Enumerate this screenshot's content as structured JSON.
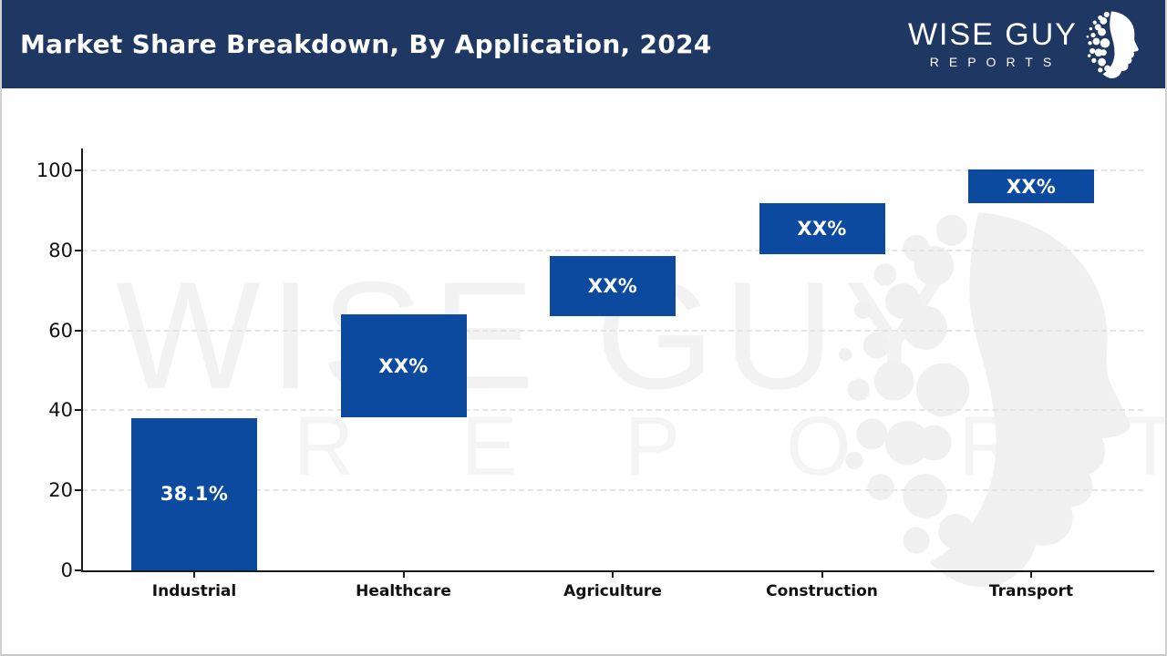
{
  "header": {
    "title": "Market Share Breakdown, By Application, 2024",
    "bg_color": "#1f3763",
    "logo": {
      "line1": "WISE GUY",
      "line2": "REPORTS"
    }
  },
  "watermark": {
    "line1": "WISE GUY",
    "line2": "R E P O R T S"
  },
  "chart_data": {
    "type": "bar",
    "subtype": "waterfall",
    "title": "Market Share Breakdown, By Application, 2024",
    "categories": [
      "Industrial",
      "Healthcare",
      "Agriculture",
      "Construction",
      "Transport"
    ],
    "segments": [
      {
        "category": "Industrial",
        "start": 0,
        "end": 38.1,
        "label": "38.1%"
      },
      {
        "category": "Healthcare",
        "start": 38.2,
        "end": 64.0,
        "label": "XX%"
      },
      {
        "category": "Agriculture",
        "start": 63.6,
        "end": 78.6,
        "label": "XX%"
      },
      {
        "category": "Construction",
        "start": 79.0,
        "end": 91.8,
        "label": "XX%"
      },
      {
        "category": "Transport",
        "start": 91.8,
        "end": 100.2,
        "label": "XX%"
      }
    ],
    "y_ticks": [
      0,
      20,
      40,
      60,
      80,
      100
    ],
    "ylim": [
      0,
      105
    ],
    "xlabel": "",
    "ylabel": "",
    "bar_color": "#0b4a9e",
    "bar_label_color": "#ffffff",
    "grid": "horizontal dashed",
    "legend": "none"
  }
}
